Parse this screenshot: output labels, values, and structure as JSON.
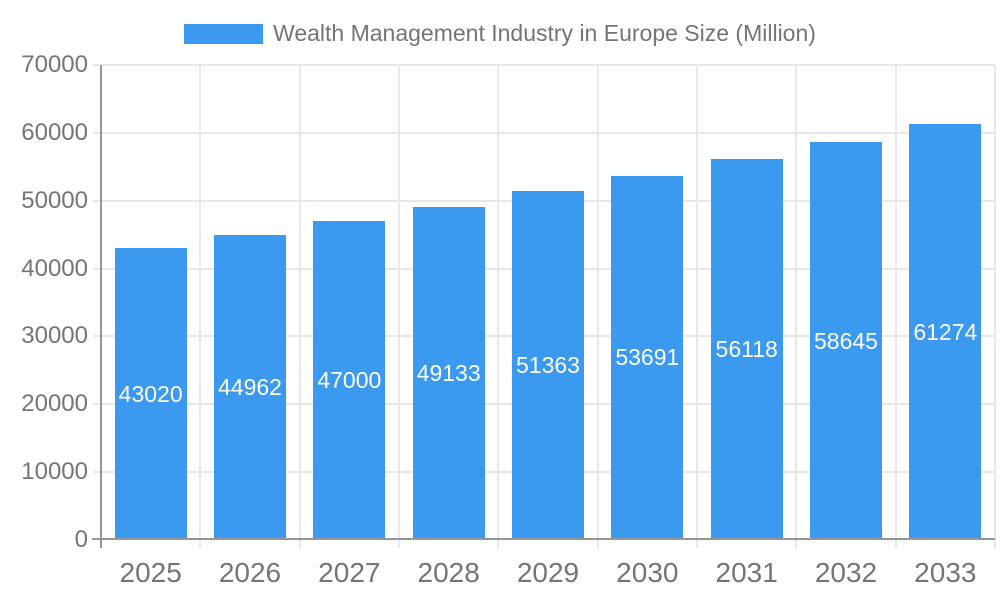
{
  "legend": {
    "label": "Wealth Management Industry in Europe Size (Million)"
  },
  "chart_data": {
    "type": "bar",
    "title": "Wealth Management Industry in Europe Size (Million)",
    "categories": [
      "2025",
      "2026",
      "2027",
      "2028",
      "2029",
      "2030",
      "2031",
      "2032",
      "2033"
    ],
    "series": [
      {
        "name": "Wealth Management Industry in Europe Size (Million)",
        "values": [
          43020,
          44962,
          47000,
          49133,
          51363,
          53691,
          56118,
          58645,
          61274
        ]
      }
    ],
    "bar_value_labels": [
      "43020",
      "44962",
      "47000",
      "49133",
      "51363",
      "53691",
      "56118",
      "58645",
      "61274"
    ],
    "xlabel": "",
    "ylabel": "",
    "ylim": [
      0,
      70000
    ],
    "y_ticks": [
      0,
      10000,
      20000,
      30000,
      40000,
      50000,
      60000,
      70000
    ],
    "grid": true,
    "legend_position": "top-center",
    "colors": {
      "bar": "#3B99F0",
      "bar_label_text": "#FFFFFF",
      "axis_line": "#969696",
      "gridline": "#E8E8E8",
      "tick_label": "#757575",
      "legend_text": "#757575",
      "background": "#FFFFFF"
    }
  }
}
